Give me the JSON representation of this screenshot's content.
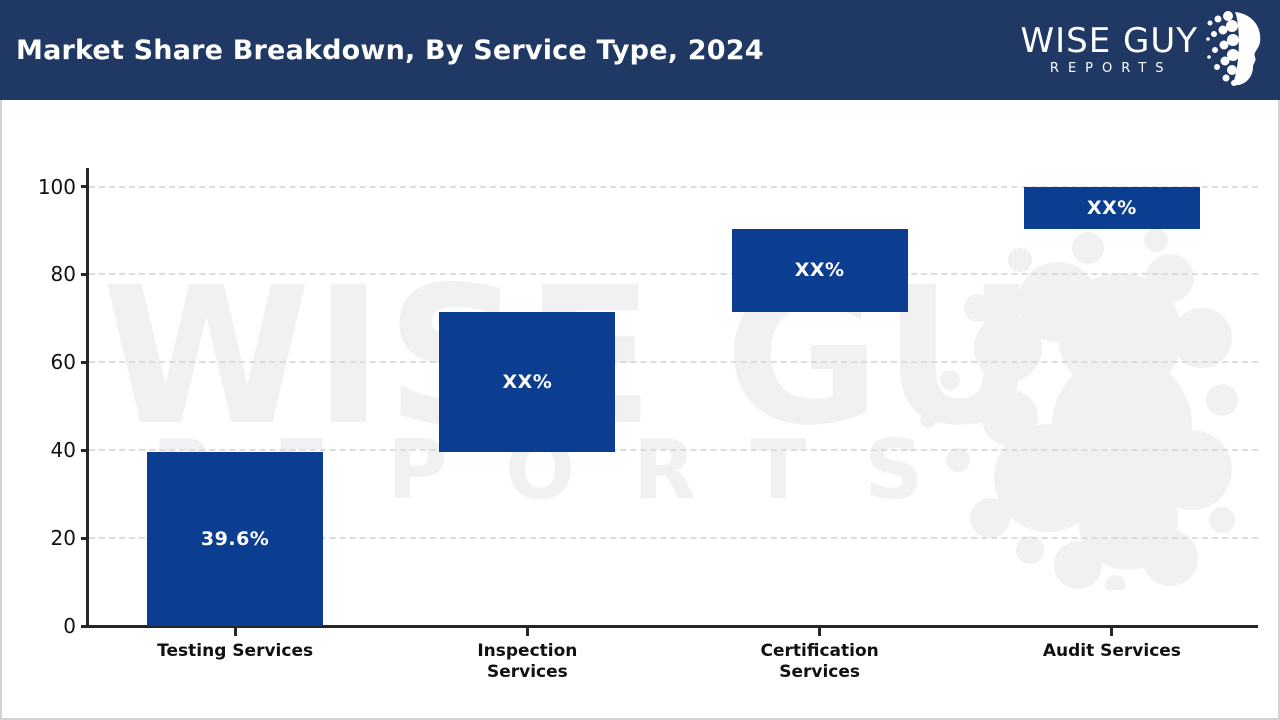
{
  "header": {
    "title": "Market Share Breakdown, By Service Type, 2024",
    "logo": {
      "line1": "WISE GUY",
      "line2": "REPORTS"
    }
  },
  "watermark": {
    "line1": "WISE GUY",
    "line2": "REPORTS"
  },
  "colors": {
    "header_bg": "#1F3864",
    "bar": "#0B3D91",
    "bar_label": "#FFFFFF",
    "gridline": "#DCDCDC",
    "axis": "#262626",
    "watermark": "#F1F1F4",
    "page_border": "#D2D2D2"
  },
  "chart_data": {
    "type": "bar",
    "subtype": "waterfall",
    "title": "Market Share Breakdown, By Service Type, 2024",
    "categories": [
      "Testing Services",
      "Inspection\nServices",
      "Certification\nServices",
      "Audit Services"
    ],
    "segments": [
      {
        "category": "Testing Services",
        "start": 0,
        "end": 39.6,
        "label": "39.6%"
      },
      {
        "category": "Inspection Services",
        "start": 39.6,
        "end": 71.4,
        "label": "XX%"
      },
      {
        "category": "Certification Services",
        "start": 71.4,
        "end": 90.4,
        "label": "XX%"
      },
      {
        "category": "Audit Services",
        "start": 90.4,
        "end": 100,
        "label": "XX%"
      }
    ],
    "values_masked_as_xx": true,
    "yticks": [
      0,
      20,
      40,
      60,
      80,
      100
    ],
    "ylim": [
      0,
      104
    ],
    "xlabel": "",
    "ylabel": "",
    "grid": "horizontal-dashed",
    "legend": "none",
    "bar_color": "#0B3D91"
  }
}
